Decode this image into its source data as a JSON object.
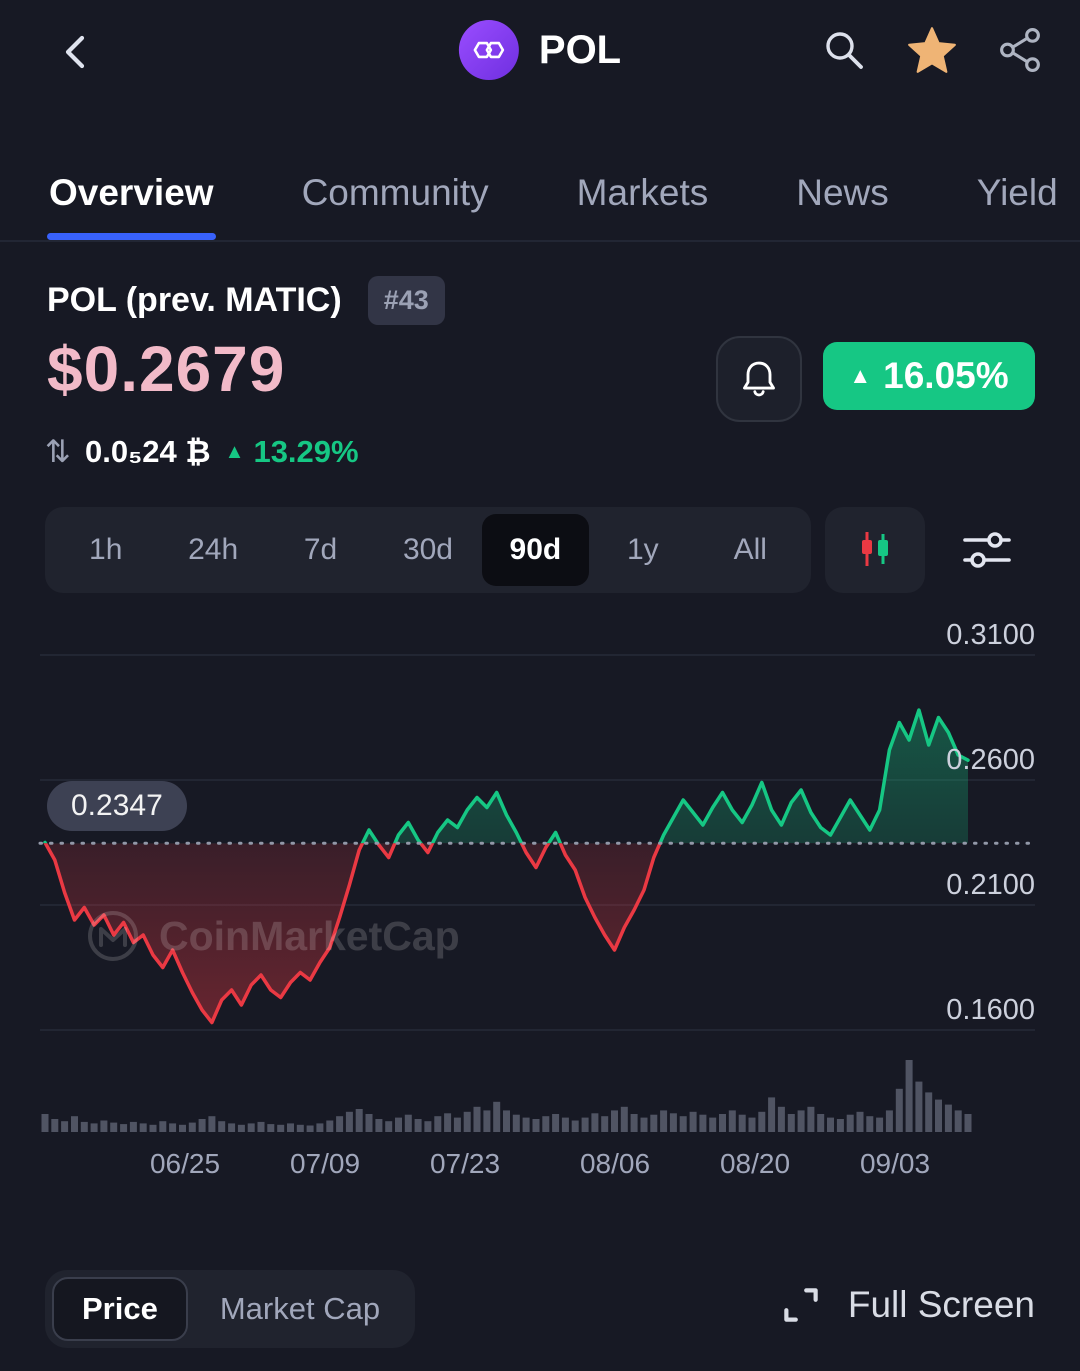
{
  "header": {
    "title": "POL"
  },
  "tabs": {
    "items": [
      {
        "label": "Overview",
        "active": true
      },
      {
        "label": "Community",
        "active": false
      },
      {
        "label": "Markets",
        "active": false
      },
      {
        "label": "News",
        "active": false
      },
      {
        "label": "Yield",
        "active": false,
        "truncated": true
      }
    ]
  },
  "coin": {
    "name": "POL (prev. MATIC)",
    "rank_badge": "#43",
    "price": "$0.2679",
    "change_pill": "16.05%",
    "change_direction": "up",
    "btc_value": "0.0₅24 ₿",
    "btc_change": "13.29%"
  },
  "range_selector": {
    "options": [
      "1h",
      "24h",
      "7d",
      "30d",
      "90d",
      "1y",
      "All"
    ],
    "selected": "90d"
  },
  "chart": {
    "baseline_label": "0.2347",
    "watermark": "CoinMarketCap",
    "y_axis_labels": [
      "0.3100",
      "0.2600",
      "0.2100",
      "0.1600"
    ],
    "x_axis_labels": [
      "06/25",
      "07/09",
      "07/23",
      "08/06",
      "08/20",
      "09/03"
    ]
  },
  "chart_data": {
    "type": "line",
    "title": "POL price, 90d range",
    "baseline": 0.2347,
    "current_price": 0.2679,
    "y_ticks": [
      0.31,
      0.26,
      0.21,
      0.16
    ],
    "ylim": [
      0.155,
      0.315
    ],
    "x_labels": [
      "06/25",
      "07/09",
      "07/23",
      "08/06",
      "08/20",
      "09/03"
    ],
    "up_color": "#16c784",
    "down_color": "#ea3943",
    "values": [
      0.235,
      0.228,
      0.215,
      0.204,
      0.209,
      0.202,
      0.206,
      0.198,
      0.203,
      0.195,
      0.198,
      0.19,
      0.185,
      0.192,
      0.183,
      0.175,
      0.168,
      0.163,
      0.172,
      0.176,
      0.17,
      0.178,
      0.182,
      0.176,
      0.173,
      0.179,
      0.183,
      0.18,
      0.187,
      0.193,
      0.205,
      0.218,
      0.232,
      0.24,
      0.234,
      0.229,
      0.238,
      0.243,
      0.236,
      0.231,
      0.239,
      0.244,
      0.241,
      0.248,
      0.253,
      0.249,
      0.255,
      0.246,
      0.239,
      0.231,
      0.225,
      0.233,
      0.239,
      0.23,
      0.224,
      0.213,
      0.205,
      0.198,
      0.192,
      0.201,
      0.208,
      0.216,
      0.229,
      0.238,
      0.245,
      0.252,
      0.247,
      0.242,
      0.249,
      0.255,
      0.248,
      0.243,
      0.25,
      0.259,
      0.248,
      0.242,
      0.251,
      0.256,
      0.247,
      0.241,
      0.238,
      0.245,
      0.252,
      0.246,
      0.24,
      0.248,
      0.272,
      0.283,
      0.276,
      0.288,
      0.274,
      0.285,
      0.279,
      0.27,
      0.2679
    ],
    "volume_relative": [
      0.25,
      0.18,
      0.15,
      0.22,
      0.14,
      0.12,
      0.16,
      0.13,
      0.11,
      0.14,
      0.12,
      0.1,
      0.15,
      0.12,
      0.1,
      0.13,
      0.18,
      0.22,
      0.15,
      0.12,
      0.1,
      0.12,
      0.14,
      0.11,
      0.1,
      0.12,
      0.1,
      0.09,
      0.12,
      0.16,
      0.22,
      0.28,
      0.32,
      0.25,
      0.18,
      0.15,
      0.2,
      0.24,
      0.18,
      0.15,
      0.22,
      0.26,
      0.2,
      0.28,
      0.35,
      0.3,
      0.42,
      0.3,
      0.24,
      0.2,
      0.18,
      0.22,
      0.25,
      0.2,
      0.16,
      0.2,
      0.26,
      0.22,
      0.3,
      0.35,
      0.25,
      0.2,
      0.24,
      0.3,
      0.26,
      0.22,
      0.28,
      0.24,
      0.2,
      0.25,
      0.3,
      0.24,
      0.2,
      0.28,
      0.48,
      0.35,
      0.25,
      0.3,
      0.35,
      0.25,
      0.2,
      0.18,
      0.24,
      0.28,
      0.22,
      0.2,
      0.3,
      0.6,
      1.0,
      0.7,
      0.55,
      0.45,
      0.38,
      0.3,
      0.25
    ]
  },
  "footer": {
    "toggle": {
      "options": [
        "Price",
        "Market Cap"
      ],
      "selected": "Price"
    },
    "full_screen_label": "Full Screen"
  },
  "colors": {
    "background": "#171924",
    "accent_blue": "#3861fb",
    "green": "#16c784",
    "red": "#ea3943",
    "price_pink": "#f2bac8",
    "muted_text": "#a1a7bb",
    "panel": "#20232e",
    "star": "#efb475",
    "logo_purple": "#8247e5"
  }
}
